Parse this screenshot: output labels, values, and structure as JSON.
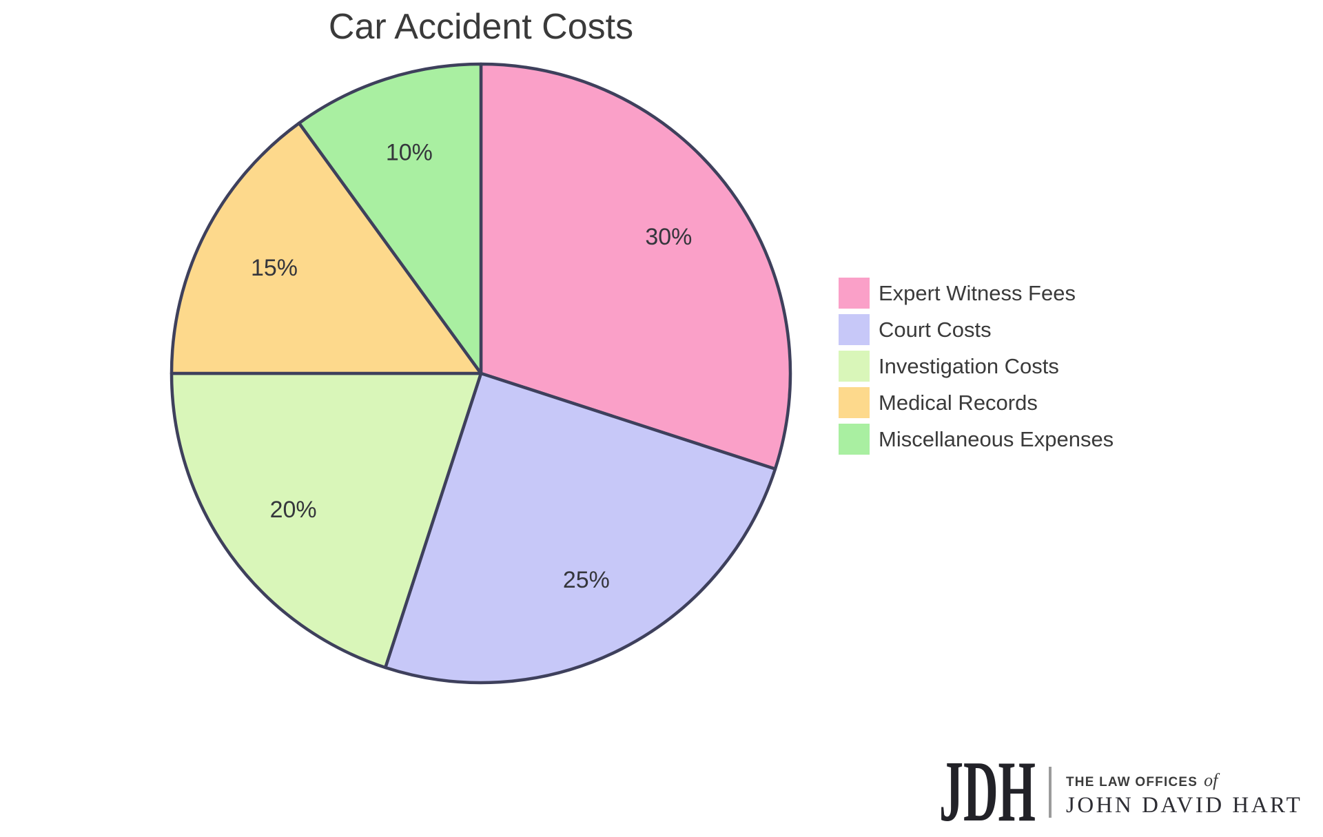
{
  "page": {
    "background_color": "#FFFFFF"
  },
  "chart_data": {
    "type": "pie",
    "title": "Car Accident Costs",
    "legend_position": "right",
    "start_angle": "12-o-clock, clockwise",
    "slices": [
      {
        "label": "Expert Witness Fees",
        "value": 30,
        "pct_label": "30%",
        "color": "#FAA0C8"
      },
      {
        "label": "Court Costs",
        "value": 25,
        "pct_label": "25%",
        "color": "#C7C8F8"
      },
      {
        "label": "Investigation Costs",
        "value": 20,
        "pct_label": "20%",
        "color": "#D9F6B9"
      },
      {
        "label": "Medical Records",
        "value": 15,
        "pct_label": "15%",
        "color": "#FDD98C"
      },
      {
        "label": "Miscellaneous Expenses",
        "value": 10,
        "pct_label": "10%",
        "color": "#A9EFA1"
      }
    ],
    "wedge_border_color": "#3E405C",
    "percent_label_color": "#35363C",
    "title_color": "#3A3A3A",
    "legend_text_color": "#3A3A3A"
  },
  "logo": {
    "monogram": "JDH",
    "tagline_prefix": "THE LAW OFFICES",
    "tagline_of": "of",
    "name": "JOHN DAVID HART"
  }
}
